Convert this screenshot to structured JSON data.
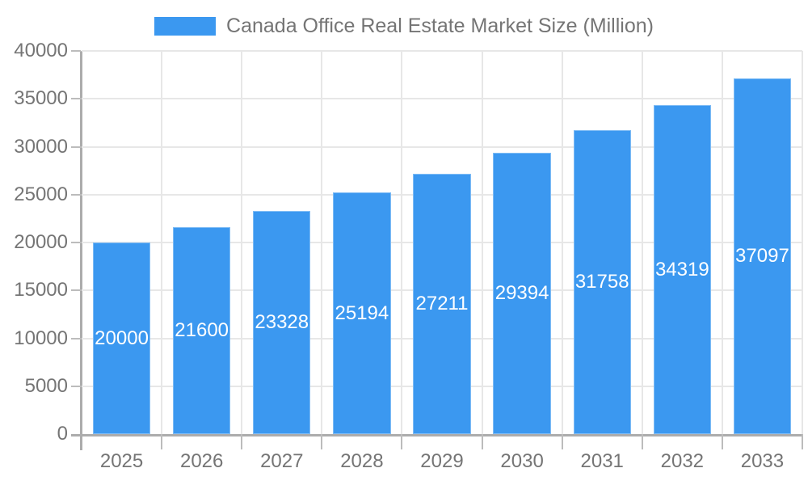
{
  "legend": {
    "label": "Canada Office Real Estate Market Size (Million)"
  },
  "chart_data": {
    "type": "bar",
    "title": "Canada Office Real Estate Market Size (Million)",
    "categories": [
      "2025",
      "2026",
      "2027",
      "2028",
      "2029",
      "2030",
      "2031",
      "2032",
      "2033"
    ],
    "values": [
      20000,
      21600,
      23328,
      25194,
      27211,
      29394,
      31758,
      34319,
      37097
    ],
    "xlabel": "",
    "ylabel": "",
    "ylim": [
      0,
      40000
    ],
    "ytick_step": 5000,
    "yticks": [
      0,
      5000,
      10000,
      15000,
      20000,
      25000,
      30000,
      35000,
      40000
    ],
    "grid": true,
    "legend_position": "top",
    "bar_labels_shown": true,
    "colors": {
      "bar": "#3b98f0",
      "bar_label": "#ffffff",
      "axis_text": "#757575",
      "axis_line": "#acacac",
      "tick": "#bcbcbc",
      "gridline": "#e7e7e7",
      "background": "#ffffff"
    }
  }
}
